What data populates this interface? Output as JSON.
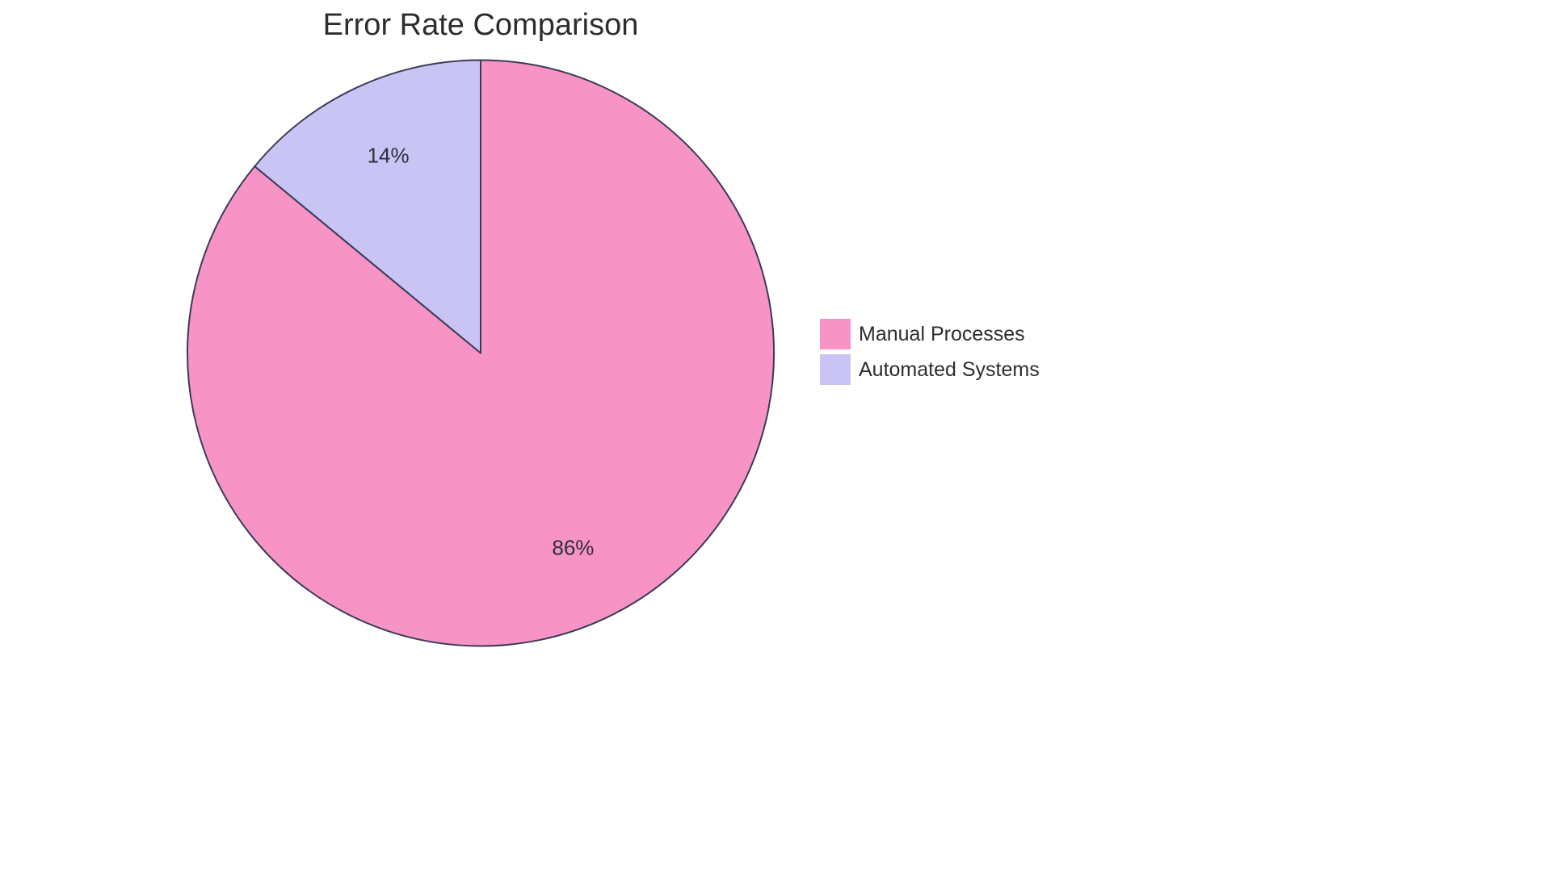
{
  "chart_data": {
    "type": "pie",
    "title": "Error Rate Comparison",
    "slices": [
      {
        "label": "Manual Processes",
        "value": 86,
        "percent_label": "86%",
        "color": "#F794C5"
      },
      {
        "label": "Automated Systems",
        "value": 14,
        "percent_label": "14%",
        "color": "#C9C4F4"
      }
    ],
    "start_angle_deg": 0,
    "direction": "clockwise",
    "slice_border_color": "#3B3B58",
    "legend_position": "right",
    "background_color": "#FFFFFF",
    "title_color": "#2D2D2D",
    "label_color": "#2E2E3E"
  }
}
